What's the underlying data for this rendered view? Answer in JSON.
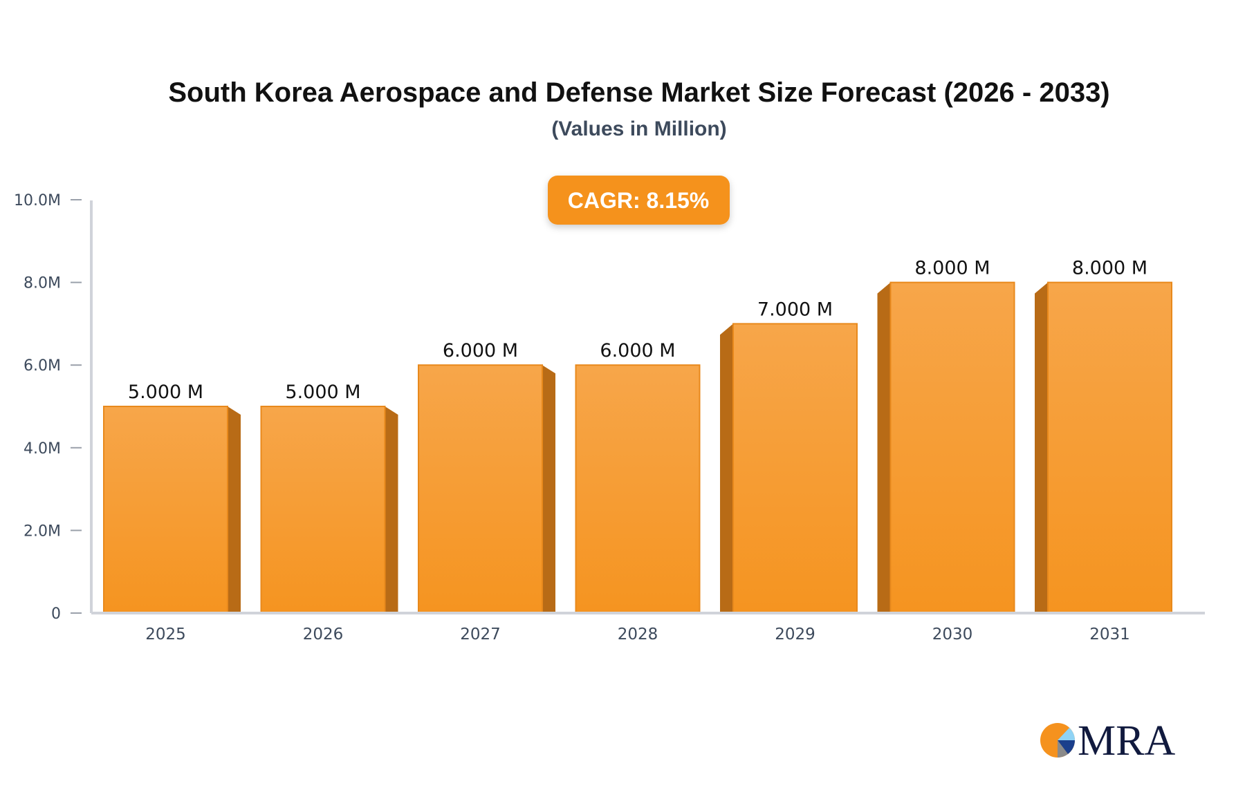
{
  "chart_data": {
    "type": "bar",
    "title": "South Korea Aerospace and Defense Market Size Forecast (2026 - 2033)",
    "subtitle": "(Values in Million)",
    "badge": "CAGR: 8.15%",
    "categories": [
      "2025",
      "2026",
      "2027",
      "2028",
      "2029",
      "2030",
      "2031"
    ],
    "values": [
      5,
      5,
      6,
      6,
      7,
      8,
      8
    ],
    "data_labels": [
      "5.000 M",
      "5.000 M",
      "6.000 M",
      "6.000 M",
      "7.000 M",
      "8.000 M",
      "8.000 M"
    ],
    "yticks": [
      {
        "v": 0,
        "label": "0"
      },
      {
        "v": 2,
        "label": "2.0M"
      },
      {
        "v": 4,
        "label": "4.0M"
      },
      {
        "v": 6,
        "label": "6.0M"
      },
      {
        "v": 8,
        "label": "8.0M"
      },
      {
        "v": 10,
        "label": "10.0M"
      }
    ],
    "ylim": [
      0,
      10
    ],
    "xlabel": "",
    "ylabel": "",
    "grid": false,
    "colors": {
      "bar_top": "#f7a64a",
      "bar_bottom": "#f59420",
      "bar_side": "#b86b16",
      "badge": "#f5921e",
      "axis": "#d0d3da"
    }
  },
  "logo": {
    "text": "MRA"
  }
}
